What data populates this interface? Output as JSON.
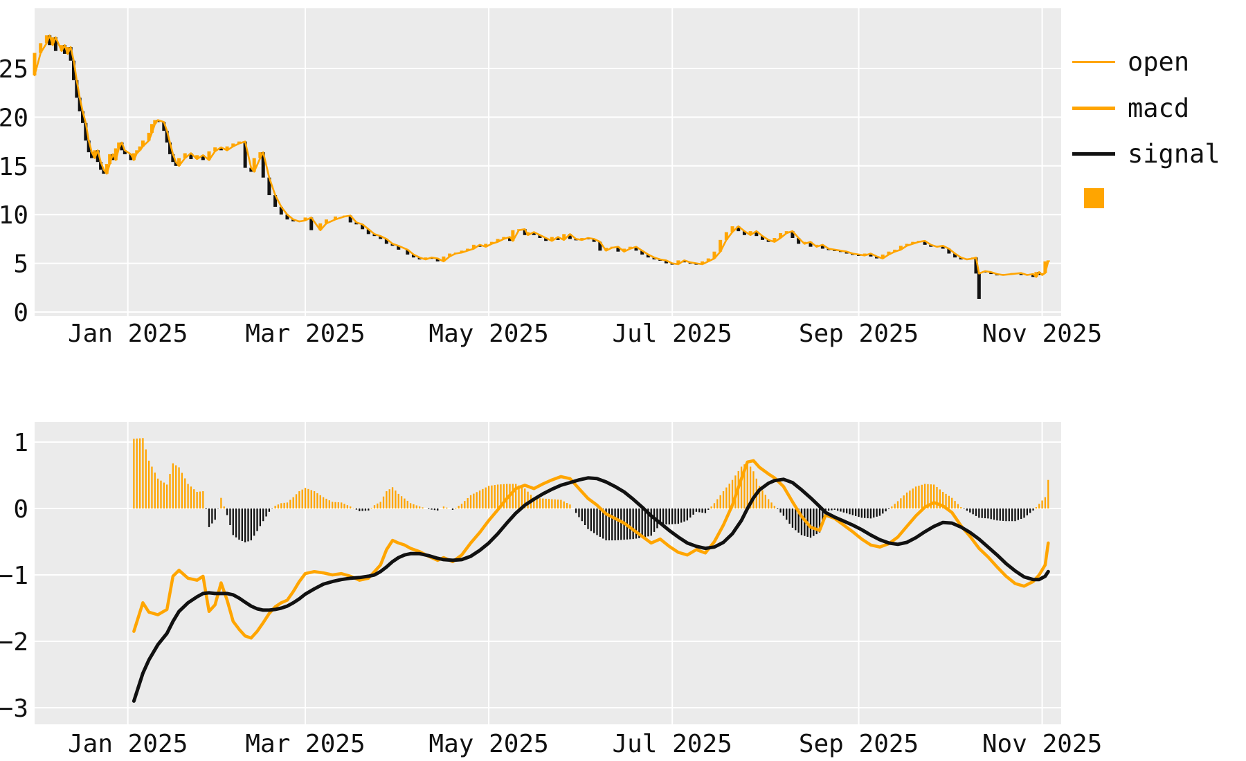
{
  "figure": {
    "background": "#ffffff",
    "panel_background": "#ebebeb",
    "grid_color": "#ffffff",
    "tick_color": "#111111"
  },
  "colors": {
    "open_line": "#FFA500",
    "macd_line": "#FFA500",
    "signal_line": "#111111",
    "candle_up": "#FFA500",
    "candle_down": "#111111",
    "hist_positive": "#FFA500",
    "hist_negative": "#111111"
  },
  "legend": {
    "items": [
      {
        "label": "open",
        "swatch": "thin-orange-line"
      },
      {
        "label": "macd",
        "swatch": "thick-orange-line"
      },
      {
        "label": "signal",
        "swatch": "black-line"
      },
      {
        "label": "",
        "swatch": "orange-square"
      }
    ]
  },
  "chart_data": [
    {
      "type": "line",
      "panel": "price",
      "title": "",
      "xlabel": "",
      "ylabel": "",
      "x_epoch": "2024-12-01",
      "x_unit": "days_since_epoch",
      "xticks": {
        "days": [
          31,
          90,
          151,
          212,
          274,
          335
        ],
        "labels": [
          "Jan 2025",
          "Mar 2025",
          "May 2025",
          "Jul 2025",
          "Sep 2025",
          "Nov 2025"
        ]
      },
      "yticks": {
        "values": [
          0,
          5,
          10,
          15,
          20,
          25
        ],
        "labels": [
          "0",
          "5",
          "10",
          "15",
          "20",
          "25"
        ]
      },
      "ylim": [
        -0.4,
        31.2
      ],
      "grid": true,
      "legend_position": "outside-upper-right",
      "dates": [
        0,
        2,
        4,
        5,
        6,
        7,
        9,
        10,
        11,
        12,
        13,
        14,
        15,
        16,
        17,
        18,
        19,
        20,
        21,
        22,
        23,
        24,
        25,
        26,
        27,
        28,
        29,
        30,
        32,
        33,
        34,
        35,
        36,
        38,
        39,
        40,
        41,
        43,
        44,
        45,
        46,
        47,
        48,
        50,
        52,
        54,
        56,
        58,
        60,
        62,
        64,
        66,
        68,
        70,
        72,
        73,
        75,
        76,
        78,
        80,
        82,
        84,
        86,
        88,
        90,
        92,
        95,
        97,
        100,
        103,
        105,
        107,
        109,
        111,
        113,
        115,
        117,
        119,
        121,
        124,
        126,
        128,
        130,
        132,
        134,
        136,
        138,
        140,
        142,
        144,
        146,
        148,
        150,
        152,
        154,
        156,
        158,
        159,
        161,
        163,
        164,
        166,
        168,
        170,
        172,
        174,
        176,
        178,
        180,
        182,
        184,
        186,
        188,
        190,
        192,
        194,
        196,
        198,
        200,
        202,
        204,
        206,
        208,
        210,
        212,
        214,
        216,
        218,
        220,
        222,
        224,
        226,
        228,
        230,
        232,
        234,
        236,
        238,
        240,
        242,
        244,
        246,
        248,
        250,
        252,
        254,
        256,
        258,
        260,
        262,
        264,
        266,
        268,
        270,
        272,
        274,
        276,
        278,
        280,
        282,
        284,
        286,
        288,
        290,
        292,
        294,
        296,
        298,
        300,
        302,
        304,
        306,
        308,
        310,
        312,
        313,
        314,
        316,
        318,
        320,
        322,
        325,
        328,
        330,
        332,
        333,
        334,
        335,
        336,
        337
      ],
      "open": [
        24.3,
        26.6,
        27.6,
        28.4,
        27.4,
        28.2,
        26.8,
        27.4,
        26.5,
        27.2,
        25.8,
        23.8,
        22.0,
        20.6,
        19.4,
        17.6,
        16.4,
        15.8,
        16.6,
        15.4,
        14.6,
        14.2,
        15.2,
        16.2,
        15.6,
        16.8,
        17.4,
        16.6,
        16.2,
        15.6,
        16.3,
        16.6,
        17.0,
        17.6,
        18.4,
        19.3,
        19.7,
        19.5,
        18.6,
        17.4,
        16.2,
        15.4,
        15.0,
        15.8,
        16.3,
        15.7,
        16.1,
        15.6,
        16.5,
        16.9,
        16.6,
        17.0,
        17.3,
        17.5,
        14.8,
        14.4,
        15.8,
        16.4,
        13.8,
        12.0,
        10.8,
        10.0,
        9.5,
        9.3,
        9.4,
        9.7,
        8.4,
        9.1,
        9.5,
        9.8,
        9.9,
        9.2,
        9.0,
        8.5,
        8.0,
        7.8,
        7.5,
        7.0,
        6.8,
        6.4,
        5.9,
        5.6,
        5.4,
        5.6,
        5.5,
        5.2,
        5.7,
        6.0,
        6.1,
        6.3,
        6.5,
        6.9,
        6.7,
        7.0,
        7.2,
        7.5,
        7.7,
        7.3,
        8.4,
        8.5,
        7.9,
        8.2,
        7.9,
        7.6,
        7.3,
        7.7,
        7.4,
        8.0,
        7.5,
        7.4,
        7.6,
        7.5,
        7.2,
        6.3,
        6.6,
        6.7,
        6.2,
        6.5,
        6.7,
        6.3,
        5.9,
        5.6,
        5.4,
        5.3,
        5.0,
        4.9,
        5.3,
        5.1,
        5.0,
        4.9,
        5.2,
        5.5,
        6.2,
        7.4,
        8.2,
        8.8,
        8.3,
        7.9,
        8.3,
        7.8,
        7.4,
        7.2,
        7.6,
        8.1,
        8.3,
        7.6,
        7.0,
        7.2,
        6.7,
        6.9,
        6.5,
        6.4,
        6.3,
        6.2,
        6.0,
        5.9,
        5.8,
        6.0,
        5.7,
        5.5,
        5.9,
        6.2,
        6.4,
        6.8,
        7.0,
        7.2,
        7.3,
        6.9,
        6.7,
        6.8,
        6.5,
        6.0,
        5.6,
        5.4,
        5.5,
        5.6,
        3.95,
        4.2,
        4.1,
        3.9,
        3.8,
        3.9,
        4.0,
        3.8,
        3.9,
        3.6,
        4.1,
        3.8,
        4.0,
        5.2
      ],
      "close": [
        26.6,
        27.6,
        28.4,
        27.4,
        28.2,
        26.8,
        27.4,
        26.5,
        27.2,
        25.8,
        23.8,
        22.0,
        20.6,
        19.4,
        17.6,
        16.4,
        15.8,
        16.6,
        15.4,
        14.6,
        14.2,
        15.2,
        16.2,
        15.6,
        16.8,
        17.4,
        16.6,
        16.2,
        15.6,
        16.3,
        16.6,
        17.0,
        17.6,
        18.4,
        19.3,
        19.7,
        19.5,
        18.6,
        17.4,
        16.2,
        15.4,
        15.0,
        15.8,
        16.3,
        15.7,
        16.1,
        15.6,
        16.5,
        16.9,
        16.6,
        17.0,
        17.3,
        17.5,
        14.8,
        14.4,
        15.8,
        16.4,
        13.8,
        12.0,
        10.8,
        10.0,
        9.5,
        9.3,
        9.4,
        9.7,
        8.4,
        9.1,
        9.5,
        9.8,
        9.9,
        9.2,
        9.0,
        8.5,
        8.0,
        7.8,
        7.5,
        7.0,
        6.8,
        6.4,
        5.9,
        5.6,
        5.4,
        5.6,
        5.5,
        5.2,
        5.7,
        6.0,
        6.1,
        6.3,
        6.5,
        6.9,
        6.7,
        7.0,
        7.2,
        7.5,
        7.7,
        7.3,
        8.4,
        8.5,
        7.9,
        8.2,
        7.9,
        7.6,
        7.3,
        7.7,
        7.4,
        8.0,
        7.5,
        7.4,
        7.6,
        7.5,
        7.2,
        6.3,
        6.6,
        6.7,
        6.2,
        6.5,
        6.7,
        6.3,
        5.9,
        5.6,
        5.4,
        5.3,
        5.0,
        4.9,
        5.3,
        5.1,
        5.0,
        4.9,
        5.2,
        5.5,
        6.2,
        7.4,
        8.2,
        8.8,
        8.3,
        7.9,
        8.3,
        7.8,
        7.4,
        7.2,
        7.6,
        8.1,
        8.3,
        7.6,
        7.0,
        7.2,
        6.7,
        6.9,
        6.5,
        6.4,
        6.3,
        6.2,
        6.0,
        5.9,
        5.8,
        6.0,
        5.7,
        5.5,
        5.9,
        6.2,
        6.4,
        6.8,
        7.0,
        7.2,
        7.3,
        6.9,
        6.7,
        6.8,
        6.5,
        6.0,
        5.6,
        5.4,
        5.5,
        5.6,
        3.95,
        1.35,
        4.1,
        3.9,
        3.8,
        3.9,
        4.0,
        3.8,
        3.9,
        3.6,
        4.1,
        3.8,
        4.0,
        5.2,
        5.3
      ]
    },
    {
      "type": "line+bar",
      "panel": "macd_indicator",
      "title": "",
      "xlabel": "",
      "ylabel": "",
      "x_epoch": "2024-12-01",
      "x_unit": "days_since_epoch",
      "xticks": {
        "days": [
          31,
          90,
          151,
          212,
          274,
          335
        ],
        "labels": [
          "Jan 2025",
          "Mar 2025",
          "May 2025",
          "Jul 2025",
          "Sep 2025",
          "Nov 2025"
        ]
      },
      "yticks": {
        "values": [
          1,
          0,
          -1,
          -2,
          -3
        ],
        "labels": [
          "1",
          "0",
          "−1",
          "−2",
          "−3"
        ]
      },
      "ylim": [
        -3.25,
        1.3
      ],
      "grid": true,
      "hist_rule": "histogram bars = macd − signal, daily, orange when ≥ 0 and black when < 0",
      "dates": [
        33,
        36,
        38,
        41,
        44,
        46,
        48,
        51,
        54,
        56,
        58,
        60,
        62,
        64,
        66,
        68,
        70,
        72,
        74,
        76,
        78,
        80,
        82,
        84,
        86,
        88,
        90,
        93,
        96,
        99,
        102,
        105,
        108,
        111,
        113,
        115,
        117,
        119,
        121,
        123,
        125,
        128,
        131,
        134,
        136,
        139,
        142,
        145,
        148,
        151,
        154,
        157,
        160,
        163,
        166,
        169,
        172,
        175,
        178,
        181,
        184,
        187,
        190,
        193,
        196,
        199,
        202,
        205,
        208,
        211,
        214,
        217,
        220,
        223,
        226,
        229,
        232,
        235,
        237,
        239,
        241,
        244,
        246,
        249,
        252,
        255,
        258,
        261,
        263,
        266,
        269,
        272,
        275,
        278,
        281,
        284,
        287,
        290,
        293,
        296,
        299,
        302,
        305,
        308,
        311,
        314,
        317,
        320,
        323,
        326,
        329,
        332,
        334,
        336,
        337
      ],
      "series": [
        {
          "name": "macd",
          "values": [
            -1.85,
            -1.42,
            -1.56,
            -1.6,
            -1.52,
            -1.02,
            -0.93,
            -1.05,
            -1.08,
            -1.02,
            -1.55,
            -1.45,
            -1.12,
            -1.38,
            -1.7,
            -1.82,
            -1.92,
            -1.95,
            -1.85,
            -1.72,
            -1.58,
            -1.48,
            -1.42,
            -1.38,
            -1.25,
            -1.1,
            -0.98,
            -0.95,
            -0.97,
            -1.0,
            -0.98,
            -1.02,
            -1.08,
            -1.05,
            -0.95,
            -0.85,
            -0.62,
            -0.48,
            -0.52,
            -0.55,
            -0.6,
            -0.65,
            -0.72,
            -0.78,
            -0.74,
            -0.8,
            -0.7,
            -0.52,
            -0.36,
            -0.18,
            -0.02,
            0.15,
            0.3,
            0.35,
            0.3,
            0.37,
            0.43,
            0.48,
            0.45,
            0.3,
            0.15,
            0.05,
            -0.08,
            -0.15,
            -0.22,
            -0.32,
            -0.42,
            -0.52,
            -0.46,
            -0.57,
            -0.66,
            -0.7,
            -0.62,
            -0.67,
            -0.5,
            -0.25,
            0.05,
            0.45,
            0.7,
            0.72,
            0.62,
            0.52,
            0.46,
            0.33,
            0.1,
            -0.12,
            -0.28,
            -0.33,
            -0.1,
            -0.15,
            -0.25,
            -0.35,
            -0.46,
            -0.55,
            -0.58,
            -0.53,
            -0.43,
            -0.27,
            -0.11,
            0.02,
            0.09,
            0.04,
            -0.06,
            -0.26,
            -0.42,
            -0.6,
            -0.73,
            -0.88,
            -1.02,
            -1.13,
            -1.17,
            -1.1,
            -1.0,
            -0.85,
            -0.52
          ]
        },
        {
          "name": "signal",
          "values": [
            -2.9,
            -2.48,
            -2.28,
            -2.05,
            -1.88,
            -1.7,
            -1.55,
            -1.42,
            -1.33,
            -1.28,
            -1.27,
            -1.28,
            -1.28,
            -1.28,
            -1.3,
            -1.35,
            -1.41,
            -1.47,
            -1.51,
            -1.53,
            -1.53,
            -1.52,
            -1.5,
            -1.47,
            -1.42,
            -1.36,
            -1.29,
            -1.21,
            -1.14,
            -1.1,
            -1.07,
            -1.05,
            -1.04,
            -1.02,
            -1.0,
            -0.95,
            -0.88,
            -0.8,
            -0.74,
            -0.7,
            -0.68,
            -0.68,
            -0.71,
            -0.75,
            -0.77,
            -0.78,
            -0.77,
            -0.72,
            -0.63,
            -0.52,
            -0.38,
            -0.22,
            -0.07,
            0.05,
            0.14,
            0.22,
            0.29,
            0.35,
            0.39,
            0.43,
            0.46,
            0.45,
            0.4,
            0.33,
            0.25,
            0.14,
            0.02,
            -0.11,
            -0.22,
            -0.33,
            -0.43,
            -0.52,
            -0.57,
            -0.6,
            -0.58,
            -0.51,
            -0.38,
            -0.18,
            0.0,
            0.16,
            0.28,
            0.38,
            0.42,
            0.44,
            0.39,
            0.28,
            0.16,
            0.03,
            -0.06,
            -0.13,
            -0.19,
            -0.25,
            -0.32,
            -0.4,
            -0.47,
            -0.52,
            -0.54,
            -0.51,
            -0.44,
            -0.35,
            -0.27,
            -0.21,
            -0.22,
            -0.28,
            -0.36,
            -0.46,
            -0.58,
            -0.7,
            -0.83,
            -0.94,
            -1.03,
            -1.07,
            -1.07,
            -1.02,
            -0.95
          ]
        }
      ]
    }
  ]
}
